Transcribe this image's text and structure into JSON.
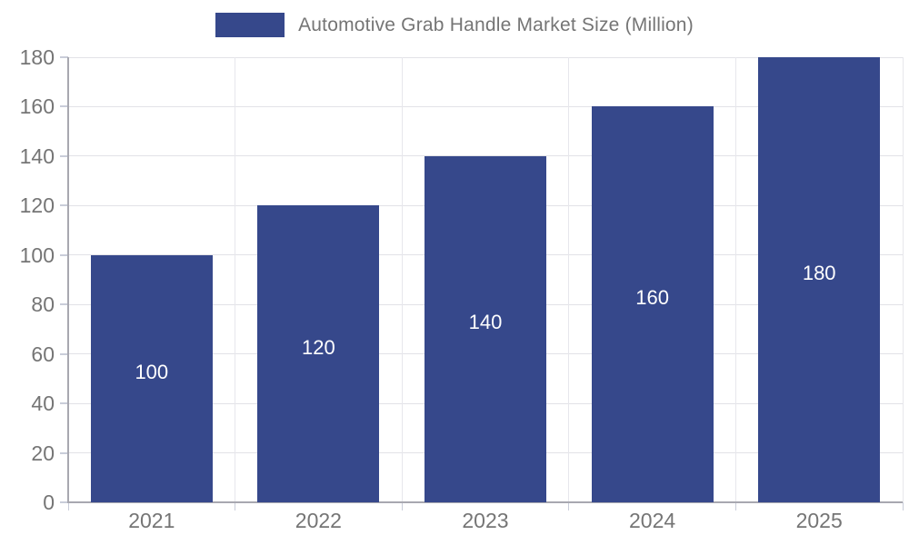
{
  "legend": {
    "label": "Automotive Grab Handle Market Size (Million)"
  },
  "chart_data": {
    "type": "bar",
    "title": "Automotive Grab Handle Market Size (Million)",
    "categories": [
      "2021",
      "2022",
      "2023",
      "2024",
      "2025"
    ],
    "values": [
      100,
      120,
      140,
      160,
      180
    ],
    "series": [
      {
        "name": "Automotive Grab Handle Market Size (Million)",
        "values": [
          100,
          120,
          140,
          160,
          180
        ]
      }
    ],
    "xlabel": "",
    "ylabel": "",
    "ylim": [
      0,
      180
    ],
    "ytick_step": 20,
    "ytick_labels": [
      "0",
      "20",
      "40",
      "60",
      "80",
      "100",
      "120",
      "140",
      "160",
      "180"
    ],
    "grid": true,
    "legend_position": "top",
    "bar_color": "#36488B",
    "value_label_color": "#ffffff",
    "axis_label_color": "#757575"
  }
}
